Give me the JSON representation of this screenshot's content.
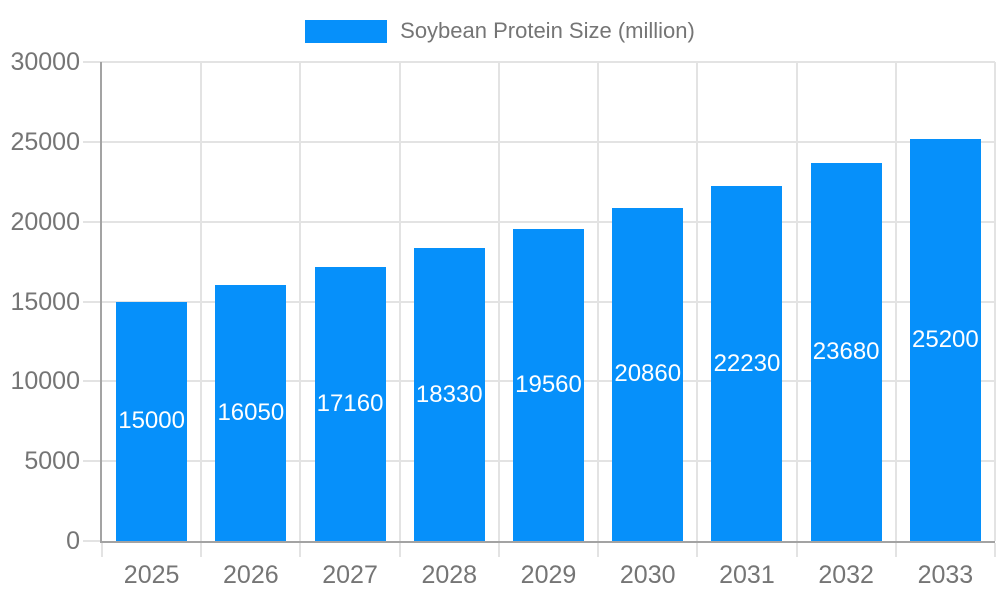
{
  "legend": {
    "label": "Soybean Protein Size (million)"
  },
  "chart_data": {
    "type": "bar",
    "title": "Soybean Protein Size (million)",
    "categories": [
      "2025",
      "2026",
      "2027",
      "2028",
      "2029",
      "2030",
      "2031",
      "2032",
      "2033"
    ],
    "values": [
      15000,
      16050,
      17160,
      18330,
      19560,
      20860,
      22230,
      23680,
      25200
    ],
    "xlabel": "",
    "ylabel": "",
    "ylim": [
      0,
      30000
    ],
    "ytick_step": 5000,
    "yticks": [
      "0",
      "5000",
      "10000",
      "15000",
      "20000",
      "25000",
      "30000"
    ],
    "grid": true,
    "legend_position": "top-center",
    "bar_labels_position": "inside-middle",
    "colors": {
      "bar": "#0690fa",
      "bar_label": "#ffffff",
      "axis_line": "#a3a3a3",
      "grid_line": "#e3e3e3",
      "tick_text": "#757575",
      "background": "#ffffff"
    }
  }
}
